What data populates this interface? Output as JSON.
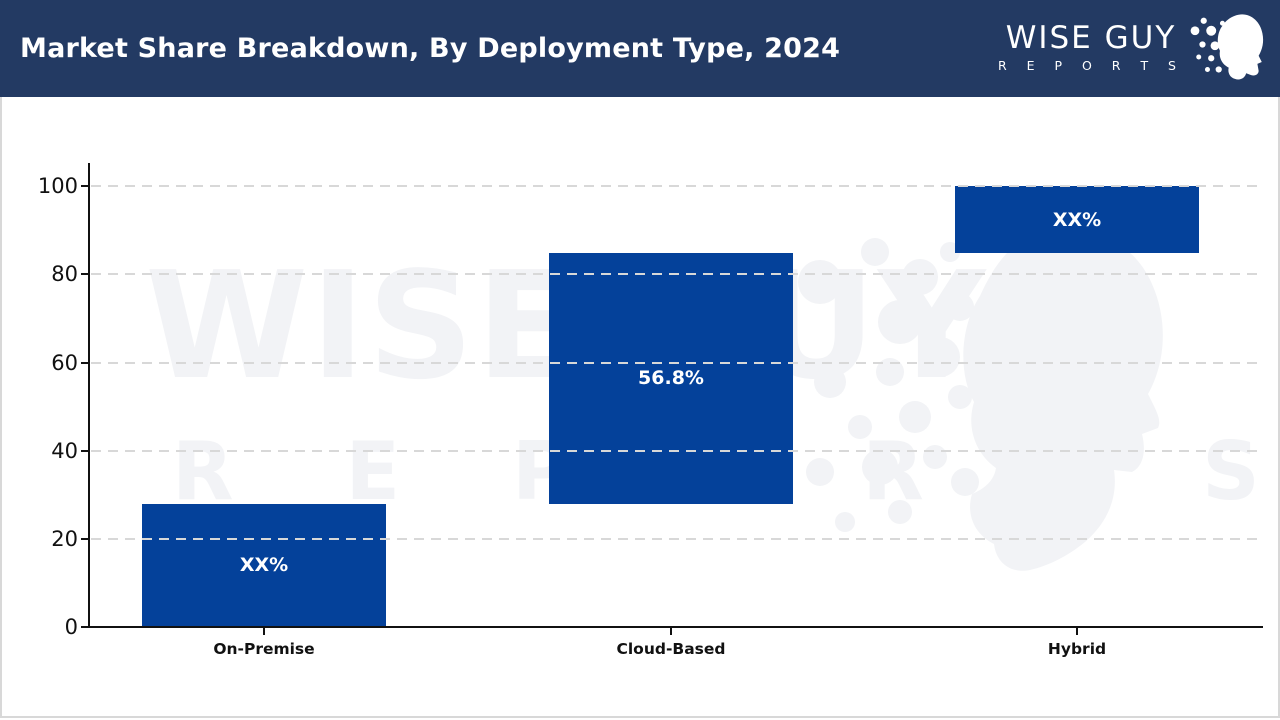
{
  "header": {
    "title": "Market Share Breakdown, By Deployment Type, 2024",
    "logo": {
      "primary": "WISE GUY",
      "secondary": "REPORTS"
    }
  },
  "watermark": {
    "primary": "WISE GUY",
    "secondary": "REPORTS"
  },
  "chart_data": {
    "type": "bar",
    "variant": "waterfall",
    "title": "Market Share Breakdown, By Deployment Type, 2024",
    "categories": [
      "On-Premise",
      "Cloud-Based",
      "Hybrid"
    ],
    "values": [
      28,
      56.8,
      15.2
    ],
    "segments": [
      {
        "category": "On-Premise",
        "start": 0,
        "end": 28,
        "label": "XX%"
      },
      {
        "category": "Cloud-Based",
        "start": 28,
        "end": 84.8,
        "label": "56.8%"
      },
      {
        "category": "Hybrid",
        "start": 84.8,
        "end": 100,
        "label": "XX%"
      }
    ],
    "xlabel": "",
    "ylabel": "",
    "ylim": [
      0,
      100
    ],
    "yticks": [
      0,
      20,
      40,
      60,
      80,
      100
    ],
    "grid": {
      "axis": "y",
      "style": "dashed",
      "drawn_over_bars": true
    },
    "legend": null,
    "bar_color": "#04419a",
    "bar_label_color": "#ffffff"
  },
  "colors": {
    "header_bg": "#233a63",
    "bar": "#04419a",
    "grid": "#d8d8d8",
    "axis": "#111111",
    "watermark": "#f2f3f6",
    "page_border": "#d8d8d8"
  }
}
